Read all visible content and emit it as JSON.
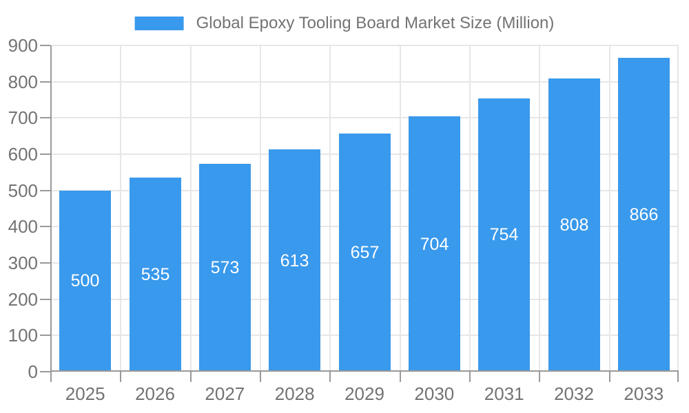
{
  "chart_data": {
    "type": "bar",
    "title": "Global Epoxy Tooling Board Market Size (Million)",
    "series_name": "Global Epoxy Tooling Board Market Size (Million)",
    "categories": [
      "2025",
      "2026",
      "2027",
      "2028",
      "2029",
      "2030",
      "2031",
      "2032",
      "2033"
    ],
    "values": [
      500,
      535,
      573,
      613,
      657,
      704,
      754,
      808,
      866
    ],
    "xlabel": "",
    "ylabel": "",
    "ylim": [
      0,
      900
    ],
    "ytick_step": 100,
    "ytick_labels": [
      "0",
      "100",
      "200",
      "300",
      "400",
      "500",
      "600",
      "700",
      "800",
      "900"
    ],
    "grid": true,
    "legend_position": "top-center",
    "bar_labels_shown": true,
    "colors": {
      "bar": "#3999EC",
      "bar_label": "#FFFFFF",
      "grid": "#E6E6E6",
      "axis": "#999999",
      "text": "#737373",
      "background": "#FFFFFF"
    }
  }
}
